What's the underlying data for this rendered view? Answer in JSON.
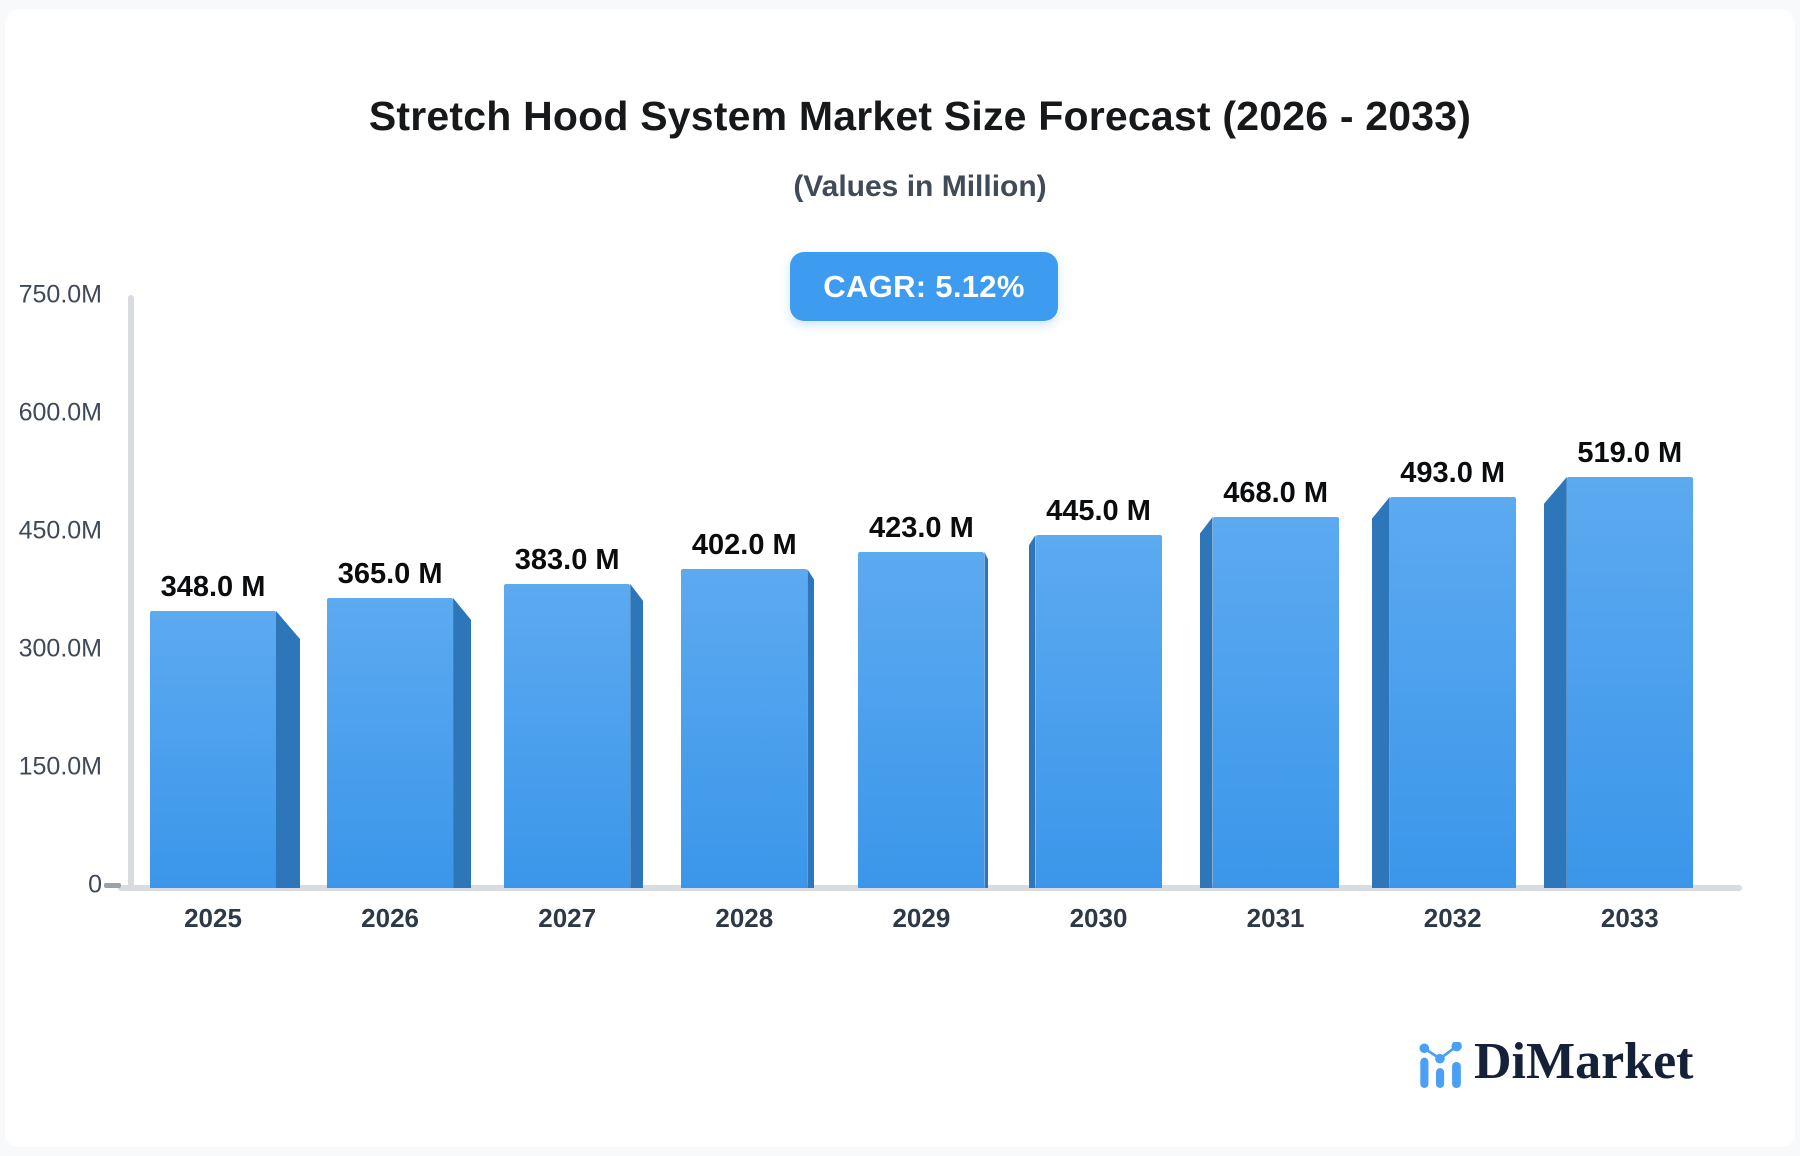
{
  "title": "Stretch Hood System Market Size Forecast (2026 - 2033)",
  "subtitle": "(Values in Million)",
  "badge": {
    "label": "CAGR: 5.12%",
    "bg_color": "#3e9cf0",
    "text_color": "#ffffff"
  },
  "chart_data": {
    "type": "bar",
    "title": "Stretch Hood System Market Size Forecast (2026 - 2033)",
    "subtitle": "(Values in Million)",
    "unit": "Million",
    "categories": [
      "2025",
      "2026",
      "2027",
      "2028",
      "2029",
      "2030",
      "2031",
      "2032",
      "2033"
    ],
    "values": [
      348,
      365,
      383,
      402,
      423,
      445,
      468,
      493,
      519
    ],
    "value_labels": [
      "348.0 M",
      "365.0 M",
      "383.0 M",
      "402.0 M",
      "423.0 M",
      "445.0 M",
      "468.0 M",
      "493.0 M",
      "519.0 M"
    ],
    "y_ticks": [
      {
        "value": 750,
        "label": "750.0M"
      },
      {
        "value": 600,
        "label": "600.0M"
      },
      {
        "value": 450,
        "label": "450.0M"
      },
      {
        "value": 300,
        "label": "300.0M"
      },
      {
        "value": 150,
        "label": "150.0M"
      },
      {
        "value": 0,
        "label": "0"
      }
    ],
    "ylim": [
      0,
      750
    ],
    "grid": false,
    "legend": false,
    "bar_color_top": "#5caaf0",
    "bar_color_bottom": "#3b96ea",
    "bar_side_color": "#2e76ba",
    "axis_color": "#d8dbdf"
  },
  "logo": {
    "text": "DiMarket",
    "icon": "mini-bar-chart-icon",
    "icon_color": "#4aa0f4",
    "text_color": "#142138"
  }
}
